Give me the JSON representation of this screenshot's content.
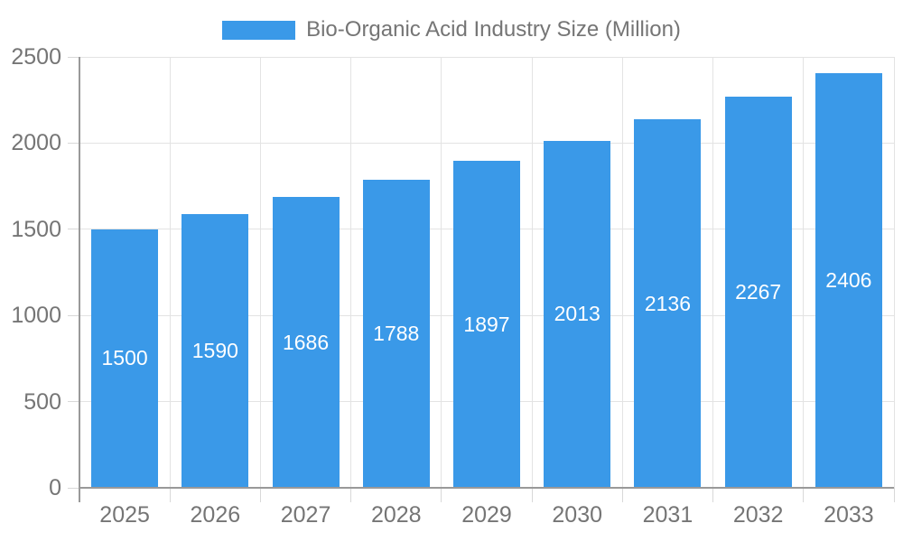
{
  "chart_data": {
    "type": "bar",
    "title": "Bio-Organic Acid Industry Size (Million)",
    "categories": [
      "2025",
      "2026",
      "2027",
      "2028",
      "2029",
      "2030",
      "2031",
      "2032",
      "2033"
    ],
    "values": [
      1500,
      1590,
      1686,
      1788,
      1897,
      2013,
      2136,
      2267,
      2406
    ],
    "series": [
      {
        "name": "Bio-Organic Acid Industry Size (Million)",
        "values": [
          1500,
          1590,
          1686,
          1788,
          1897,
          2013,
          2136,
          2267,
          2406
        ]
      }
    ],
    "xlabel": "",
    "ylabel": "",
    "ylim": [
      0,
      2500
    ],
    "yticks": [
      0,
      500,
      1000,
      1500,
      2000,
      2500
    ],
    "grid": true,
    "legend_position": "top",
    "value_labels": "inside-center",
    "colors": {
      "bar": "#3A99E8",
      "value_label": "#FFFFFF",
      "axis_line": "#999999",
      "gridline": "#E3E3E3",
      "tick": "#D8D8D8",
      "label_text": "#757575",
      "title_text": "#757575",
      "background": "#FFFFFF"
    }
  }
}
